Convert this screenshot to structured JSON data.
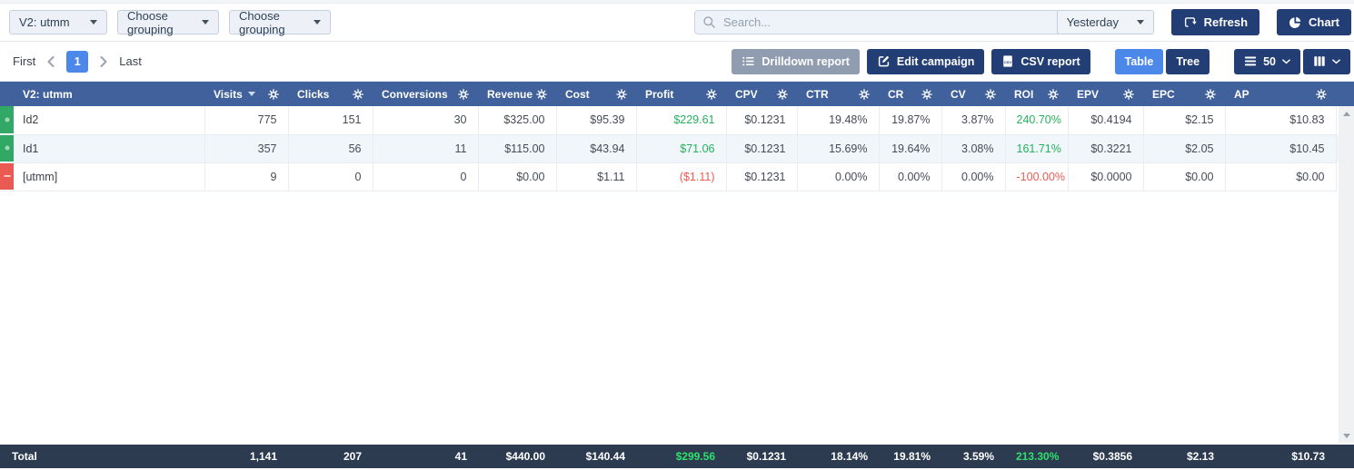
{
  "toolbar": {
    "variable_select": "V2: utmm",
    "grouping_select_1": "Choose grouping",
    "grouping_select_2": "Choose grouping",
    "search_placeholder": "Search...",
    "date_select": "Yesterday",
    "refresh_button": "Refresh",
    "chart_button": "Chart"
  },
  "pagination": {
    "first_label": "First",
    "current_page": "1",
    "last_label": "Last"
  },
  "actions": {
    "drilldown_button": "Drilldown report",
    "edit_campaign_button": "Edit campaign",
    "csv_button": "CSV report",
    "table_toggle": "Table",
    "tree_toggle": "Tree",
    "page_size": "50"
  },
  "icons": {
    "search": "magnifier",
    "refresh": "refresh-square-arrow",
    "chart": "pie-chart",
    "drilldown": "bullet-list",
    "edit": "pencil-square",
    "csv": "csv-file",
    "page_size": "hamburger-lines",
    "columns": "column-bars",
    "gear": "gear",
    "sort": "caret-down"
  },
  "colors": {
    "header_blue": "#40619c",
    "accent_blue": "#4c87ea",
    "navy_button": "#233e74",
    "disabled_button": "#909caf",
    "total_bar": "#2d3b50",
    "positive_green": "#23b25b",
    "negative_red": "#ee5a54",
    "total_green": "#2ee06a",
    "up_indicator": "#31a866",
    "down_indicator": "#ea5a52",
    "row_alt": "#f1f6fa"
  },
  "table": {
    "columns": [
      {
        "key": "name",
        "label": "V2: utmm",
        "gear": false,
        "sorted": false
      },
      {
        "key": "visits",
        "label": "Visits",
        "gear": true,
        "sorted": true
      },
      {
        "key": "clicks",
        "label": "Clicks",
        "gear": true,
        "sorted": false
      },
      {
        "key": "conversions",
        "label": "Conversions",
        "gear": true,
        "sorted": false
      },
      {
        "key": "revenue",
        "label": "Revenue",
        "gear": true,
        "sorted": false
      },
      {
        "key": "cost",
        "label": "Cost",
        "gear": true,
        "sorted": false
      },
      {
        "key": "profit",
        "label": "Profit",
        "gear": true,
        "sorted": false
      },
      {
        "key": "cpv",
        "label": "CPV",
        "gear": true,
        "sorted": false
      },
      {
        "key": "ctr",
        "label": "CTR",
        "gear": true,
        "sorted": false
      },
      {
        "key": "cr",
        "label": "CR",
        "gear": true,
        "sorted": false
      },
      {
        "key": "cv",
        "label": "CV",
        "gear": true,
        "sorted": false
      },
      {
        "key": "roi",
        "label": "ROI",
        "gear": true,
        "sorted": false
      },
      {
        "key": "epv",
        "label": "EPV",
        "gear": true,
        "sorted": false
      },
      {
        "key": "epc",
        "label": "EPC",
        "gear": true,
        "sorted": false
      },
      {
        "key": "ap",
        "label": "AP",
        "gear": true,
        "sorted": false
      }
    ],
    "rows": [
      {
        "trend": "up",
        "name": "Id2",
        "visits": "775",
        "clicks": "151",
        "conversions": "30",
        "revenue": "$325.00",
        "cost": "$95.39",
        "profit": "$229.61",
        "cpv": "$0.1231",
        "ctr": "19.48%",
        "cr": "19.87%",
        "cv": "3.87%",
        "roi": "240.70%",
        "epv": "$0.4194",
        "epc": "$2.15",
        "ap": "$10.83"
      },
      {
        "trend": "up",
        "name": "Id1",
        "visits": "357",
        "clicks": "56",
        "conversions": "11",
        "revenue": "$115.00",
        "cost": "$43.94",
        "profit": "$71.06",
        "cpv": "$0.1231",
        "ctr": "15.69%",
        "cr": "19.64%",
        "cv": "3.08%",
        "roi": "161.71%",
        "epv": "$0.3221",
        "epc": "$2.05",
        "ap": "$10.45"
      },
      {
        "trend": "down",
        "name": "[utmm]",
        "visits": "9",
        "clicks": "0",
        "conversions": "0",
        "revenue": "$0.00",
        "cost": "$1.11",
        "profit": "($1.11)",
        "cpv": "$0.1231",
        "ctr": "0.00%",
        "cr": "0.00%",
        "cv": "0.00%",
        "roi": "-100.00%",
        "epv": "$0.0000",
        "epc": "$0.00",
        "ap": "$0.00"
      }
    ],
    "total": {
      "name": "Total",
      "visits": "1,141",
      "clicks": "207",
      "conversions": "41",
      "revenue": "$440.00",
      "cost": "$140.44",
      "profit": "$299.56",
      "cpv": "$0.1231",
      "ctr": "18.14%",
      "cr": "19.81%",
      "cv": "3.59%",
      "roi": "213.30%",
      "epv": "$0.3856",
      "epc": "$2.13",
      "ap": "$10.73"
    }
  }
}
